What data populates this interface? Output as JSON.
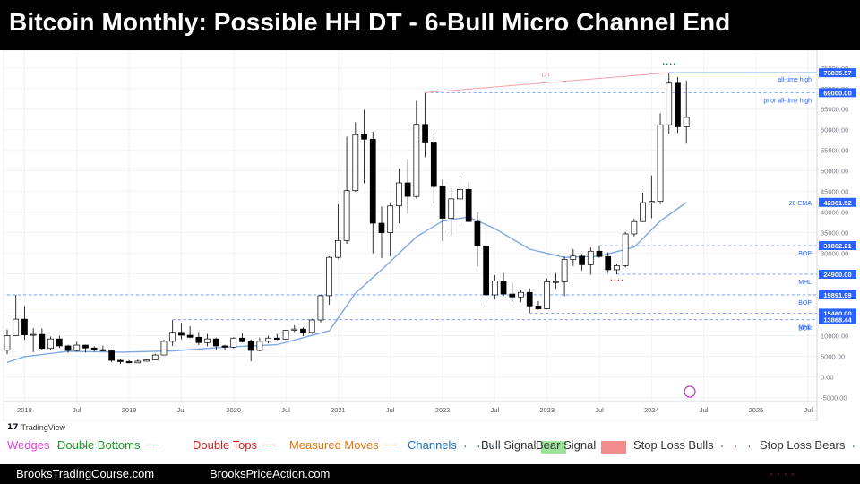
{
  "header": {
    "title": "Bitcoin Monthly: Possible HH DT - 6-Bull Micro Channel End"
  },
  "platform": {
    "name": "TradingView"
  },
  "chart_data": {
    "type": "candlestick",
    "title": "Bitcoin Monthly: Possible HH DT - 6-Bull Micro Channel End",
    "x_axis": {
      "start": "2017-11",
      "end": "2025-08",
      "ticks": [
        {
          "date": "2018-01",
          "label": "2018"
        },
        {
          "date": "2018-07",
          "label": "Jul"
        },
        {
          "date": "2019-01",
          "label": "2019"
        },
        {
          "date": "2019-07",
          "label": "Jul"
        },
        {
          "date": "2020-01",
          "label": "2020"
        },
        {
          "date": "2020-07",
          "label": "Jul"
        },
        {
          "date": "2021-01",
          "label": "2021"
        },
        {
          "date": "2021-07",
          "label": "Jul"
        },
        {
          "date": "2022-01",
          "label": "2022"
        },
        {
          "date": "2022-07",
          "label": "Jul"
        },
        {
          "date": "2023-01",
          "label": "2023"
        },
        {
          "date": "2023-07",
          "label": "Jul"
        },
        {
          "date": "2024-01",
          "label": "2024"
        },
        {
          "date": "2024-07",
          "label": "Jul"
        },
        {
          "date": "2025-01",
          "label": "2025"
        },
        {
          "date": "2025-07",
          "label": "Jul"
        }
      ]
    },
    "y_axis": {
      "min": -6000,
      "max": 78000,
      "ticks": [
        75000,
        70000,
        65000,
        60000,
        55000,
        50000,
        45000,
        40000,
        35000,
        30000,
        25000,
        20000,
        15000,
        10000,
        5000,
        0,
        -5000
      ]
    },
    "candles": [
      {
        "t": "2017-11",
        "o": 6450,
        "h": 11500,
        "l": 5500,
        "c": 10000
      },
      {
        "t": "2017-12",
        "o": 10000,
        "h": 19891,
        "l": 10000,
        "c": 14000
      },
      {
        "t": "2018-01",
        "o": 14000,
        "h": 17200,
        "l": 9000,
        "c": 10200
      },
      {
        "t": "2018-02",
        "o": 10200,
        "h": 11800,
        "l": 6000,
        "c": 10300
      },
      {
        "t": "2018-03",
        "o": 10300,
        "h": 11700,
        "l": 6400,
        "c": 6900
      },
      {
        "t": "2018-04",
        "o": 6900,
        "h": 9800,
        "l": 6400,
        "c": 9200
      },
      {
        "t": "2018-05",
        "o": 9200,
        "h": 10000,
        "l": 7000,
        "c": 7500
      },
      {
        "t": "2018-06",
        "o": 7500,
        "h": 7800,
        "l": 5800,
        "c": 6400
      },
      {
        "t": "2018-07",
        "o": 6400,
        "h": 8500,
        "l": 6100,
        "c": 7700
      },
      {
        "t": "2018-08",
        "o": 7700,
        "h": 7800,
        "l": 5900,
        "c": 7000
      },
      {
        "t": "2018-09",
        "o": 7000,
        "h": 7400,
        "l": 6100,
        "c": 6600
      },
      {
        "t": "2018-10",
        "o": 6600,
        "h": 7600,
        "l": 6200,
        "c": 6300
      },
      {
        "t": "2018-11",
        "o": 6300,
        "h": 6600,
        "l": 3600,
        "c": 4000
      },
      {
        "t": "2018-12",
        "o": 4000,
        "h": 4300,
        "l": 3100,
        "c": 3700
      },
      {
        "t": "2019-01",
        "o": 3700,
        "h": 4100,
        "l": 3400,
        "c": 3400
      },
      {
        "t": "2019-02",
        "o": 3400,
        "h": 4200,
        "l": 3400,
        "c": 3800
      },
      {
        "t": "2019-03",
        "o": 3800,
        "h": 4100,
        "l": 3700,
        "c": 4100
      },
      {
        "t": "2019-04",
        "o": 4100,
        "h": 5600,
        "l": 4100,
        "c": 5300
      },
      {
        "t": "2019-05",
        "o": 5300,
        "h": 9000,
        "l": 5300,
        "c": 8600
      },
      {
        "t": "2019-06",
        "o": 8600,
        "h": 13800,
        "l": 7500,
        "c": 10800
      },
      {
        "t": "2019-07",
        "o": 10800,
        "h": 13100,
        "l": 9100,
        "c": 10100
      },
      {
        "t": "2019-08",
        "o": 10100,
        "h": 12300,
        "l": 9400,
        "c": 9600
      },
      {
        "t": "2019-09",
        "o": 9600,
        "h": 10900,
        "l": 7700,
        "c": 8300
      },
      {
        "t": "2019-10",
        "o": 8300,
        "h": 10400,
        "l": 7400,
        "c": 9200
      },
      {
        "t": "2019-11",
        "o": 9200,
        "h": 9500,
        "l": 6500,
        "c": 7500
      },
      {
        "t": "2019-12",
        "o": 7500,
        "h": 7800,
        "l": 6400,
        "c": 7200
      },
      {
        "t": "2020-01",
        "o": 7200,
        "h": 9600,
        "l": 6900,
        "c": 9400
      },
      {
        "t": "2020-02",
        "o": 9400,
        "h": 10500,
        "l": 8400,
        "c": 8500
      },
      {
        "t": "2020-03",
        "o": 8500,
        "h": 9100,
        "l": 3800,
        "c": 6400
      },
      {
        "t": "2020-04",
        "o": 6400,
        "h": 9500,
        "l": 6200,
        "c": 8600
      },
      {
        "t": "2020-05",
        "o": 8600,
        "h": 10000,
        "l": 8100,
        "c": 9400
      },
      {
        "t": "2020-06",
        "o": 9400,
        "h": 10400,
        "l": 8900,
        "c": 9100
      },
      {
        "t": "2020-07",
        "o": 9100,
        "h": 11400,
        "l": 9000,
        "c": 11300
      },
      {
        "t": "2020-08",
        "o": 11300,
        "h": 12500,
        "l": 10900,
        "c": 11600
      },
      {
        "t": "2020-09",
        "o": 11600,
        "h": 12000,
        "l": 9900,
        "c": 10800
      },
      {
        "t": "2020-10",
        "o": 10800,
        "h": 14100,
        "l": 10400,
        "c": 13800
      },
      {
        "t": "2020-11",
        "o": 13800,
        "h": 19800,
        "l": 13200,
        "c": 19700
      },
      {
        "t": "2020-12",
        "o": 19700,
        "h": 29300,
        "l": 17500,
        "c": 29000
      },
      {
        "t": "2021-01",
        "o": 29000,
        "h": 41900,
        "l": 28700,
        "c": 33100
      },
      {
        "t": "2021-02",
        "o": 33100,
        "h": 58300,
        "l": 32300,
        "c": 45200
      },
      {
        "t": "2021-03",
        "o": 45200,
        "h": 61800,
        "l": 44900,
        "c": 58800
      },
      {
        "t": "2021-04",
        "o": 58800,
        "h": 64800,
        "l": 47000,
        "c": 57700
      },
      {
        "t": "2021-05",
        "o": 57700,
        "h": 59500,
        "l": 30000,
        "c": 37300
      },
      {
        "t": "2021-06",
        "o": 37300,
        "h": 41300,
        "l": 28800,
        "c": 35000
      },
      {
        "t": "2021-07",
        "o": 35000,
        "h": 42300,
        "l": 29300,
        "c": 41500
      },
      {
        "t": "2021-08",
        "o": 41500,
        "h": 50500,
        "l": 37300,
        "c": 47100
      },
      {
        "t": "2021-09",
        "o": 47100,
        "h": 52900,
        "l": 39600,
        "c": 43800
      },
      {
        "t": "2021-10",
        "o": 43800,
        "h": 67000,
        "l": 43300,
        "c": 61300
      },
      {
        "t": "2021-11",
        "o": 61300,
        "h": 69000,
        "l": 53300,
        "c": 57000
      },
      {
        "t": "2021-12",
        "o": 57000,
        "h": 59100,
        "l": 42000,
        "c": 46200
      },
      {
        "t": "2022-01",
        "o": 46200,
        "h": 47900,
        "l": 33000,
        "c": 38500
      },
      {
        "t": "2022-02",
        "o": 38500,
        "h": 45800,
        "l": 34300,
        "c": 43200
      },
      {
        "t": "2022-03",
        "o": 43200,
        "h": 48200,
        "l": 37200,
        "c": 45500
      },
      {
        "t": "2022-04",
        "o": 45500,
        "h": 47400,
        "l": 37700,
        "c": 37700
      },
      {
        "t": "2022-05",
        "o": 37700,
        "h": 40000,
        "l": 26700,
        "c": 31800
      },
      {
        "t": "2022-06",
        "o": 31800,
        "h": 31900,
        "l": 17600,
        "c": 19900
      },
      {
        "t": "2022-07",
        "o": 19900,
        "h": 24700,
        "l": 18800,
        "c": 23300
      },
      {
        "t": "2022-08",
        "o": 23300,
        "h": 25200,
        "l": 19600,
        "c": 20100
      },
      {
        "t": "2022-09",
        "o": 20100,
        "h": 22800,
        "l": 18100,
        "c": 19400
      },
      {
        "t": "2022-10",
        "o": 19400,
        "h": 21000,
        "l": 18200,
        "c": 20500
      },
      {
        "t": "2022-11",
        "o": 20500,
        "h": 21500,
        "l": 15500,
        "c": 17200
      },
      {
        "t": "2022-12",
        "o": 17200,
        "h": 18400,
        "l": 16300,
        "c": 16500
      },
      {
        "t": "2023-01",
        "o": 16500,
        "h": 23900,
        "l": 16500,
        "c": 23100
      },
      {
        "t": "2023-02",
        "o": 23100,
        "h": 25200,
        "l": 21400,
        "c": 23100
      },
      {
        "t": "2023-03",
        "o": 23100,
        "h": 29200,
        "l": 19600,
        "c": 28500
      },
      {
        "t": "2023-04",
        "o": 28500,
        "h": 31000,
        "l": 26900,
        "c": 29300
      },
      {
        "t": "2023-05",
        "o": 29300,
        "h": 29800,
        "l": 25800,
        "c": 27200
      },
      {
        "t": "2023-06",
        "o": 27200,
        "h": 31400,
        "l": 24800,
        "c": 30500
      },
      {
        "t": "2023-07",
        "o": 30500,
        "h": 31800,
        "l": 28900,
        "c": 29200
      },
      {
        "t": "2023-08",
        "o": 29200,
        "h": 30200,
        "l": 25200,
        "c": 26000
      },
      {
        "t": "2023-09",
        "o": 26000,
        "h": 27500,
        "l": 24900,
        "c": 27000
      },
      {
        "t": "2023-10",
        "o": 27000,
        "h": 35200,
        "l": 26600,
        "c": 34700
      },
      {
        "t": "2023-11",
        "o": 34700,
        "h": 38400,
        "l": 34100,
        "c": 37700
      },
      {
        "t": "2023-12",
        "o": 37700,
        "h": 44700,
        "l": 37600,
        "c": 42300
      },
      {
        "t": "2024-01",
        "o": 42300,
        "h": 48900,
        "l": 38500,
        "c": 42600
      },
      {
        "t": "2024-02",
        "o": 42600,
        "h": 64000,
        "l": 41900,
        "c": 61200
      },
      {
        "t": "2024-03",
        "o": 61200,
        "h": 73835,
        "l": 59000,
        "c": 71300
      },
      {
        "t": "2024-04",
        "o": 71300,
        "h": 72800,
        "l": 59200,
        "c": 60700
      },
      {
        "t": "2024-05",
        "o": 60700,
        "h": 71900,
        "l": 56600,
        "c": 63000
      }
    ],
    "ema": {
      "name": "20-EMA",
      "color": "#7ea8e6",
      "points": [
        {
          "t": "2017-11",
          "v": 3500
        },
        {
          "t": "2018-01",
          "v": 4900
        },
        {
          "t": "2018-06",
          "v": 6200
        },
        {
          "t": "2018-12",
          "v": 6000
        },
        {
          "t": "2019-06",
          "v": 6300
        },
        {
          "t": "2019-12",
          "v": 7200
        },
        {
          "t": "2020-06",
          "v": 7800
        },
        {
          "t": "2020-12",
          "v": 11200
        },
        {
          "t": "2021-03",
          "v": 20300
        },
        {
          "t": "2021-06",
          "v": 26000
        },
        {
          "t": "2021-10",
          "v": 34000
        },
        {
          "t": "2022-01",
          "v": 37800
        },
        {
          "t": "2022-04",
          "v": 38800
        },
        {
          "t": "2022-07",
          "v": 36000
        },
        {
          "t": "2022-11",
          "v": 31000
        },
        {
          "t": "2023-03",
          "v": 29000
        },
        {
          "t": "2023-07",
          "v": 29300
        },
        {
          "t": "2023-11",
          "v": 31500
        },
        {
          "t": "2024-02",
          "v": 37800
        },
        {
          "t": "2024-05",
          "v": 42362
        }
      ]
    },
    "levels": [
      {
        "value": 73835.57,
        "label": "73835.57",
        "note": "all-time high",
        "style": "solid",
        "color": "#2962ff",
        "start": "2024-03"
      },
      {
        "value": 69000.0,
        "label": "69000.00",
        "note": "prior all-time high",
        "style": "dashed",
        "color": "#2962ff",
        "start": "2021-11"
      },
      {
        "value": 42361.52,
        "label": "42361.52",
        "note": "20-EMA",
        "style": "none",
        "color": "#2962ff"
      },
      {
        "value": 31862.21,
        "label": "31862.21",
        "note": "BOP",
        "style": "dashed",
        "color": "#2962ff",
        "start": "2023-07"
      },
      {
        "value": 24900.0,
        "label": "24900.00",
        "note": "MHL",
        "style": "dashed",
        "color": "#2962ff",
        "start": "2023-09"
      },
      {
        "value": 19891.99,
        "label": "19891.99",
        "note": "BOP",
        "style": "dashed",
        "color": "#2962ff",
        "start": "2017-11"
      },
      {
        "value": 15460.0,
        "label": "15460.00",
        "note": "",
        "style": "dashed",
        "color": "#2962ff",
        "start": "2022-11"
      },
      {
        "value": 13868.44,
        "label": "13868.44",
        "note": "MHL",
        "style": "dashed",
        "color": "#2962ff",
        "start": "2019-06"
      }
    ],
    "extra_notes": [
      {
        "text": "BOP",
        "value": 11900
      }
    ],
    "dt_line": {
      "label": "DT",
      "from": {
        "t": "2021-11",
        "v": 69000
      },
      "to": {
        "t": "2024-03",
        "v": 73835
      },
      "color": "#f4a0a8"
    },
    "signal_marks": [
      {
        "t": "2024-03",
        "v": 76000,
        "color": "#0a7a3a"
      },
      {
        "t": "2023-09",
        "v": 23500,
        "color": "#d22"
      }
    ]
  },
  "legend": {
    "items": [
      {
        "label": "Wedges",
        "color": "#e040e0",
        "key": "...",
        "key_color": "#e040e0"
      },
      {
        "label": "Double Bottoms",
        "color": "#1a9a2a",
        "key": "—",
        "key_color": "#1a9a2a"
      },
      {
        "label": "Double Tops",
        "color": "#d02020",
        "key": "—",
        "key_color": "#d02020"
      },
      {
        "label": "Measured Moves",
        "color": "#e07a10",
        "key": "—",
        "key_color": "#e07a10"
      },
      {
        "label": "Channels",
        "color": "#2070c0",
        "key": "...",
        "key_color": "#2070c0"
      },
      {
        "label": "Bull Signal",
        "color": "#333333",
        "swatch": "#9ee39b"
      },
      {
        "label": "Bear Signal",
        "color": "#333333",
        "swatch": "#f28b8b"
      },
      {
        "label": "Stop Loss Bulls",
        "color": "#333333",
        "key": "...",
        "key_color": "#d22222"
      },
      {
        "label": "Stop Loss Bears",
        "color": "#333333",
        "key": "...",
        "key_color": "#1a9a2a"
      }
    ]
  },
  "footer": {
    "left": "BrooksTradingCourse.com",
    "center": "BrooksPriceAction.com"
  },
  "colors": {
    "bull_body": "#ffffff",
    "bear_body": "#000000",
    "wick": "#000000",
    "label_bg": "#2962ff",
    "grid": "#f0f3fa"
  }
}
